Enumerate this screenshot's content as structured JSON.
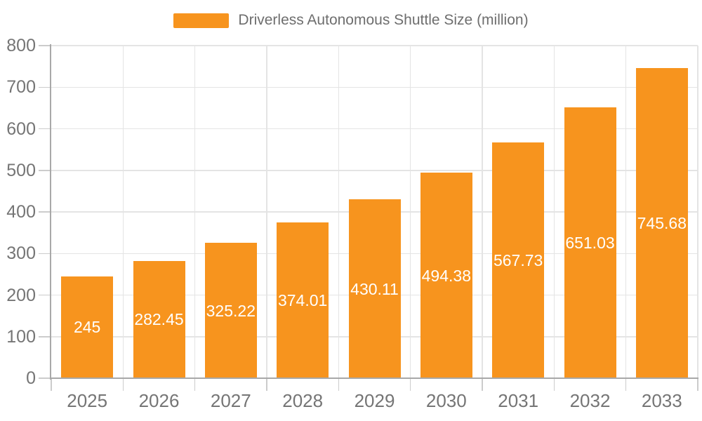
{
  "legend": {
    "items": [
      {
        "label": "Driverless Autonomous Shuttle Size (million)",
        "color": "#F7941E"
      }
    ]
  },
  "chart_data": {
    "type": "bar",
    "title": "Driverless Autonomous Shuttle Size (million)",
    "categories": [
      "2025",
      "2026",
      "2027",
      "2028",
      "2029",
      "2030",
      "2031",
      "2032",
      "2033"
    ],
    "series": [
      {
        "name": "Driverless Autonomous Shuttle Size (million)",
        "values": [
          245,
          282.45,
          325.22,
          374.01,
          430.11,
          494.38,
          567.73,
          651.03,
          745.68
        ],
        "labels": [
          "245",
          "282.45",
          "325.22",
          "374.01",
          "430.11",
          "494.38",
          "567.73",
          "651.03",
          "745.68"
        ],
        "color": "#F7941E"
      }
    ],
    "xlabel": "",
    "ylabel": "",
    "ylim": [
      0,
      800
    ],
    "yticks": [
      0,
      100,
      200,
      300,
      400,
      500,
      600,
      700,
      800
    ],
    "grid": true,
    "legend_position": "top",
    "value_label_color": "#FFFFFF",
    "axis_text_color": "#757575",
    "axis_line_color": "#A8A8A8",
    "grid_color": "#E4E4E4"
  }
}
